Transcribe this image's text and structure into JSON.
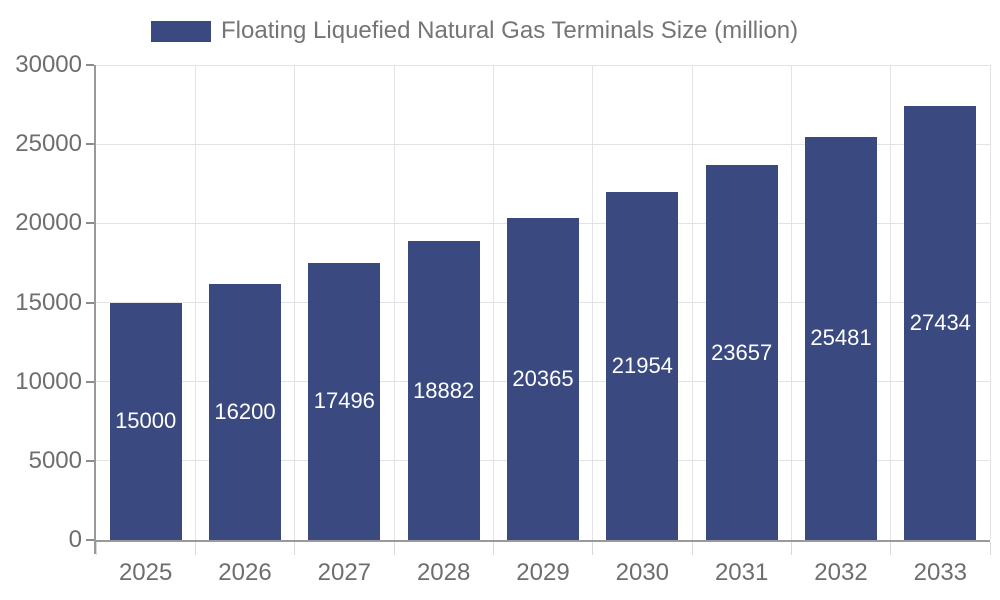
{
  "legend": {
    "series_label": "Floating Liquefied Natural Gas Terminals Size (million)"
  },
  "chart_data": {
    "type": "bar",
    "title": "Floating Liquefied Natural Gas Terminals Size (million)",
    "categories": [
      "2025",
      "2026",
      "2027",
      "2028",
      "2029",
      "2030",
      "2031",
      "2032",
      "2033"
    ],
    "values": [
      15000,
      16200,
      17496,
      18882,
      20365,
      21954,
      23657,
      25481,
      27434
    ],
    "bar_labels": [
      "15000",
      "16200",
      "17496",
      "18882",
      "20365",
      "21954",
      "23657",
      "25481",
      "27434"
    ],
    "xlabel": "",
    "ylabel": "",
    "ylim": [
      0,
      30000
    ],
    "ytick_step": 5000,
    "ytick_labels": [
      "0",
      "5000",
      "10000",
      "15000",
      "20000",
      "25000",
      "30000"
    ],
    "grid": true,
    "legend_position": "top",
    "value_label_position": "inside-middle",
    "colors": {
      "bar": "#3A4A81",
      "grid": "#E2E2E9",
      "axis": "#999999",
      "x_tick_mark": "#D8D8DF",
      "y_tick_mark": "#8C8C8C",
      "tick_text": "#6E6E6E",
      "legend_text": "#757575",
      "value_label": "#FFFFFF",
      "background": "#FFFFFF"
    }
  }
}
